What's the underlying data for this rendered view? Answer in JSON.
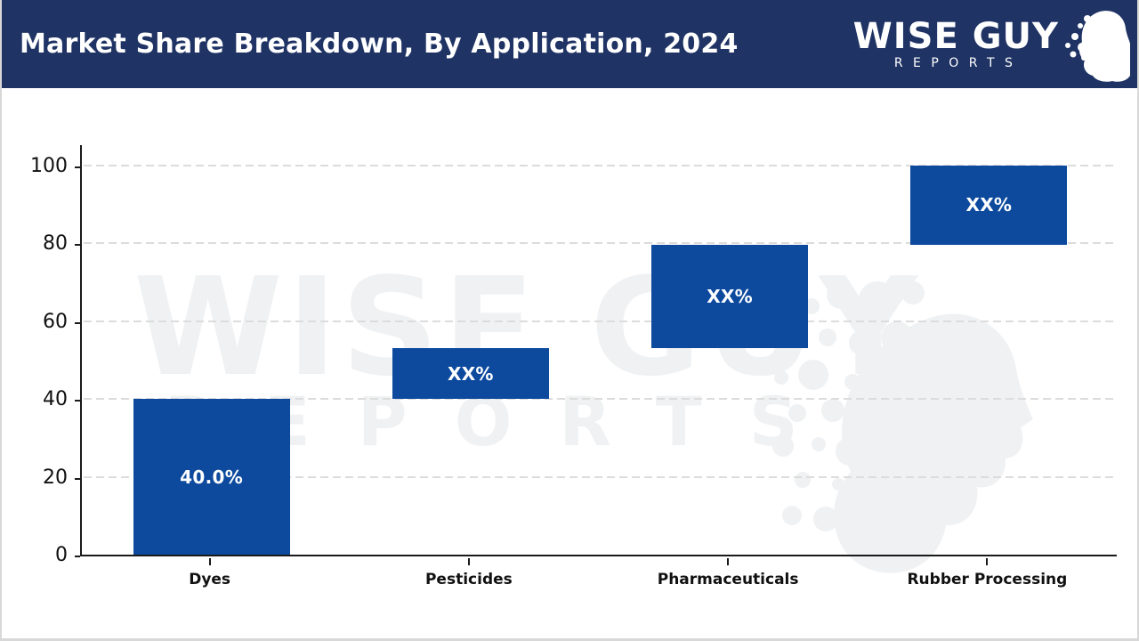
{
  "header": {
    "title": "Market Share Breakdown, By Application, 2024",
    "logo": {
      "line1": "WISE GUY",
      "line2": "REPORTS"
    }
  },
  "watermark": {
    "line1": "WISE GUY",
    "line2": "REPORTS"
  },
  "colors": {
    "header_bg": "#1f3364",
    "bar_fill": "#0d4a9e",
    "bar_label": "#ffffff",
    "axis": "#1a1a1a",
    "grid": "#dcdcdc",
    "text": "#111111",
    "watermark": "#eff1f3",
    "frame_border": "#d8d8d8"
  },
  "chart_data": {
    "type": "bar",
    "subtype": "waterfall",
    "title": "Market Share Breakdown, By Application, 2024",
    "categories": [
      "Dyes",
      "Pesticides",
      "Pharmaceuticals",
      "Rubber Processing"
    ],
    "segments": [
      {
        "category": "Dyes",
        "start": 0,
        "end": 40,
        "label": "40.0%"
      },
      {
        "category": "Pesticides",
        "start": 40,
        "end": 53,
        "label": "XX%"
      },
      {
        "category": "Pharmaceuticals",
        "start": 53,
        "end": 79.5,
        "label": "XX%"
      },
      {
        "category": "Rubber Processing",
        "start": 79.5,
        "end": 100,
        "label": "XX%"
      }
    ],
    "xlabel": "",
    "ylabel": "",
    "ylim": [
      0,
      105.5
    ],
    "yticks": [
      0,
      20,
      40,
      60,
      80,
      100
    ],
    "grid": "horizontal-dashed",
    "legend": "none"
  }
}
